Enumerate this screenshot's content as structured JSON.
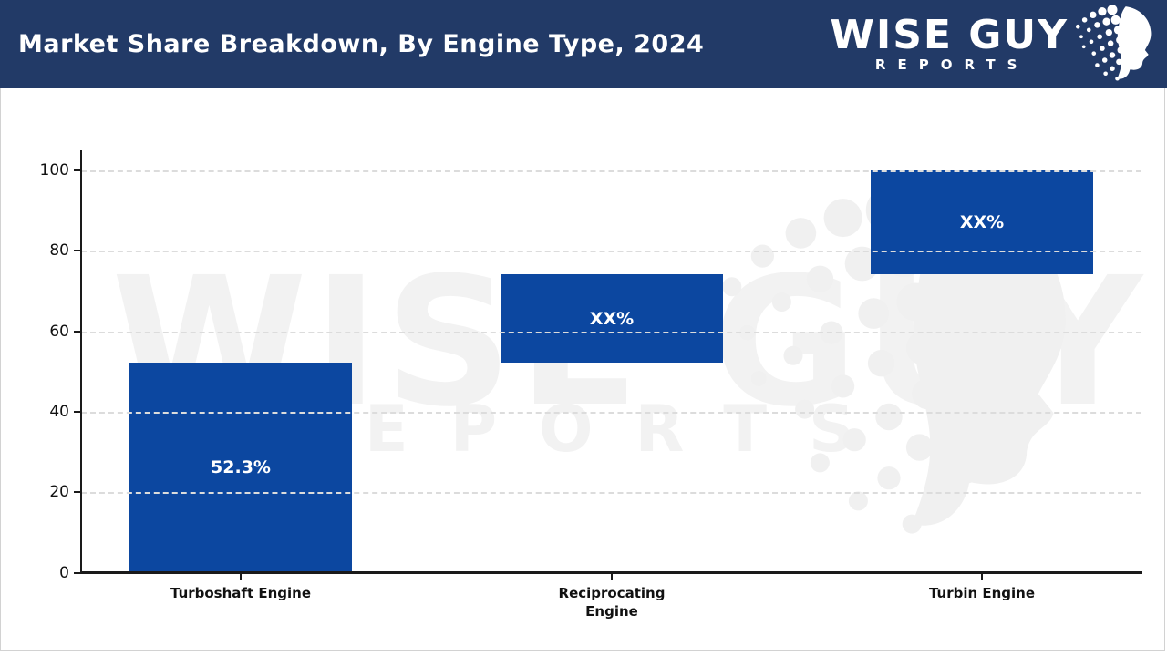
{
  "header": {
    "title": "Market Share Breakdown, By Engine Type, 2024",
    "logo": {
      "line1": "WISE GUY",
      "line2": "REPORTS"
    }
  },
  "watermark": {
    "line1": "WISE GUY",
    "line2": "REPORTS"
  },
  "chart_data": {
    "type": "bar",
    "variant": "waterfall",
    "title": "Market Share Breakdown, By Engine Type, 2024",
    "categories": [
      [
        "Turboshaft Engine"
      ],
      [
        "Reciprocating",
        "Engine"
      ],
      [
        "Turbin Engine"
      ]
    ],
    "segments": [
      {
        "category": "Turboshaft Engine",
        "start": 0,
        "end": 52.3,
        "label": "52.3%"
      },
      {
        "category": "Reciprocating Engine",
        "start": 52.3,
        "end": 74.1,
        "label": "XX%"
      },
      {
        "category": "Turbin Engine",
        "start": 74.1,
        "end": 100,
        "label": "XX%"
      }
    ],
    "yticks": [
      0,
      20,
      40,
      60,
      80,
      100
    ],
    "ylim": [
      0,
      105
    ],
    "xlabel": "",
    "ylabel": "",
    "legend": "none",
    "grid": "horizontal-dashed",
    "colors": {
      "bar": "#0c47a0",
      "bar_label": "#ffffff",
      "header_bg": "#223a67",
      "grid": "#dcdcdc",
      "axis": "#1a1a1a",
      "watermark": "#f2f2f2"
    }
  }
}
